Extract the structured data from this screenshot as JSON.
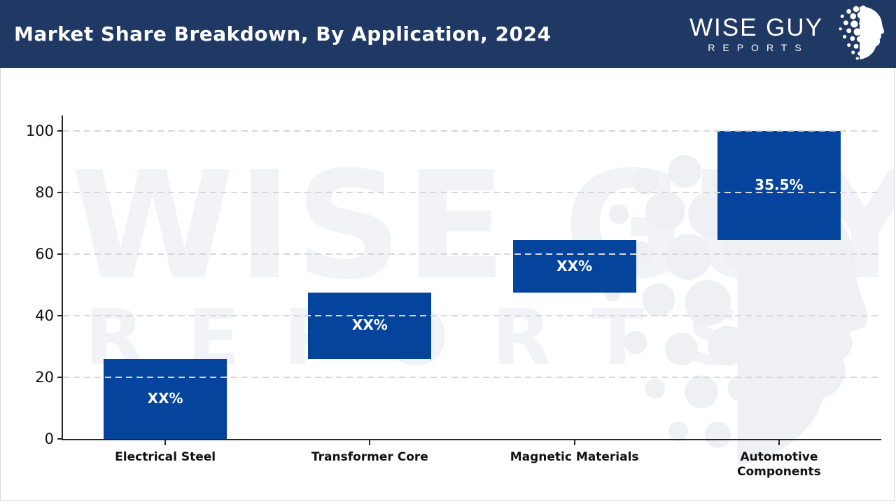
{
  "header": {
    "title": "Market Share Breakdown, By Application, 2024",
    "logo": {
      "line1": "WISE GUY",
      "line2": "REPORTS"
    }
  },
  "watermark": {
    "line1": "WISE GUY",
    "line2": "REPORTS"
  },
  "colors": {
    "header_bg": "#1f3864",
    "bar_fill": "#04449c",
    "gridline": "#d8d8d8",
    "axis": "#262626",
    "bar_label_text": "#ffffff",
    "watermark_text": "#f2f3f6"
  },
  "chart_data": {
    "type": "bar",
    "subtype": "waterfall",
    "title": "Market Share Breakdown, By Application, 2024",
    "categories": [
      "Electrical Steel",
      "Transformer Core",
      "Magnetic Materials",
      "Automotive\nComponents"
    ],
    "bars": [
      {
        "category": "Electrical Steel",
        "start": 0,
        "end": 26,
        "value": 26,
        "label": "XX%"
      },
      {
        "category": "Transformer Core",
        "start": 26,
        "end": 47.5,
        "value": 21.5,
        "label": "XX%"
      },
      {
        "category": "Magnetic Materials",
        "start": 47.5,
        "end": 64.5,
        "value": 17,
        "label": "XX%"
      },
      {
        "category": "Automotive\nComponents",
        "start": 64.5,
        "end": 100,
        "value": 35.5,
        "label": "35.5%"
      }
    ],
    "xlabel": "",
    "ylabel": "",
    "y_ticks": [
      0,
      20,
      40,
      60,
      80,
      100
    ],
    "ylim": [
      0,
      105
    ],
    "grid": "horizontal-dashed",
    "legend": "none"
  }
}
